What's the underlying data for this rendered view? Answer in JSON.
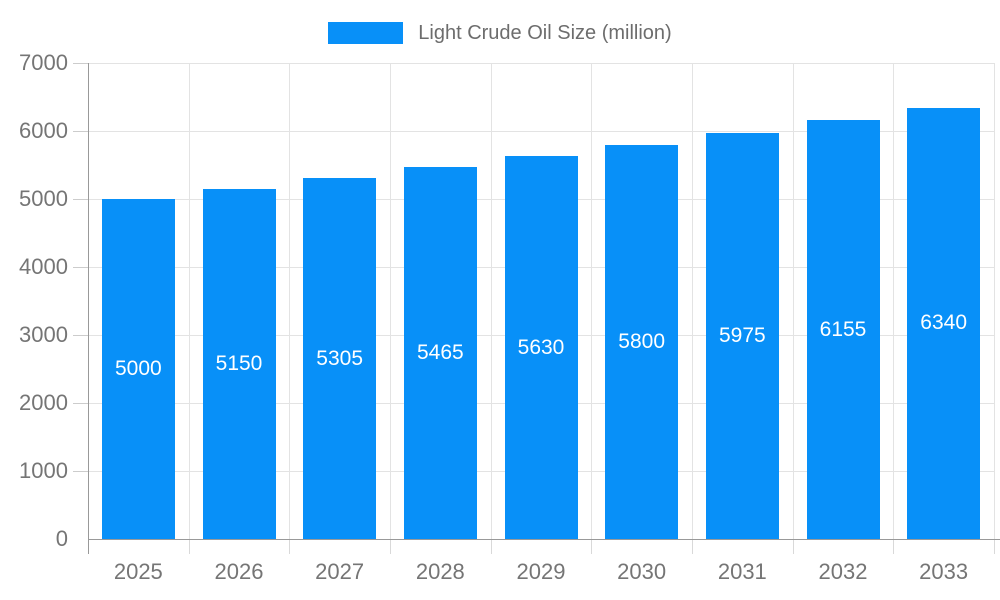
{
  "chart_data": {
    "type": "bar",
    "title": "Light Crude Oil Size (million)",
    "categories": [
      "2025",
      "2026",
      "2027",
      "2028",
      "2029",
      "2030",
      "2031",
      "2032",
      "2033"
    ],
    "values": [
      5000,
      5150,
      5305,
      5465,
      5630,
      5800,
      5975,
      6155,
      6340
    ],
    "value_labels": [
      "5000",
      "5150",
      "5305",
      "5465",
      "5630",
      "5800",
      "5975",
      "6155",
      "6340"
    ],
    "xlabel": "",
    "ylabel": "",
    "ylim": [
      0,
      7000
    ],
    "ytick_step": 1000,
    "yticks": [
      "0",
      "1000",
      "2000",
      "3000",
      "4000",
      "5000",
      "6000",
      "7000"
    ],
    "legend_position": "top",
    "grid": true,
    "colors": {
      "bar": "#0890f8",
      "bar_label": "#ffffff",
      "axis_text": "#757575",
      "legend_text": "#6d6d6d",
      "axis_line": "#999999",
      "grid_line": "#e3e3e3",
      "y_tick_line": "#cccccc",
      "x_tick_line": "#d9d9d9",
      "background": "#ffffff"
    }
  }
}
